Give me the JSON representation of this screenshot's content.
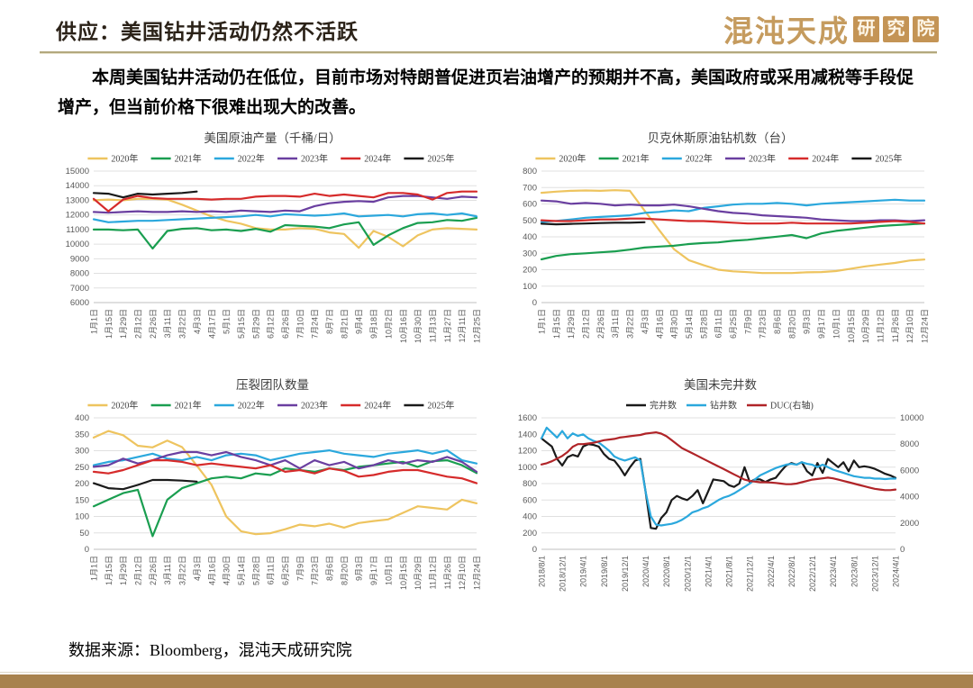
{
  "page": {
    "title": "供应：美国钻井活动仍然不活跃",
    "intro": "本周美国钻井活动仍在低位，目前市场对特朗普促进页岩油增产的预期并不高，美国政府或采用减税等手段促增产，但当前价格下很难出现大的改善。",
    "source": "数据来源：Bloomberg，混沌天成研究院"
  },
  "logo": {
    "brand": "混沌天成",
    "seal": [
      "研",
      "究",
      "院"
    ],
    "gold": "#c59b5e"
  },
  "colors": {
    "accent_bar": "#a8824e",
    "y2020": "#eec45f",
    "y2021": "#1a9e50",
    "y2022": "#2ba8dd",
    "y2023": "#6a3fa0",
    "y2024": "#d62b2b",
    "y2025": "#1a1a1a",
    "duc_red": "#b02428"
  },
  "chart_data": [
    {
      "type": "line",
      "title": "美国原油产量（千桶/日）",
      "legend_position": "top",
      "grid": true,
      "ylim": [
        6000,
        15000
      ],
      "ytick": 1000,
      "categories": [
        "1月1日",
        "1月15日",
        "1月29日",
        "2月12日",
        "2月26日",
        "3月11日",
        "3月22日",
        "4月3日",
        "4月17日",
        "5月1日",
        "5月15日",
        "5月29日",
        "6月12日",
        "6月26日",
        "7月10日",
        "7月24日",
        "8月7日",
        "8月21日",
        "9月4日",
        "9月18日",
        "10月2日",
        "10月16日",
        "10月30日",
        "11月13日",
        "11月27日",
        "12月11日",
        "12月25日"
      ],
      "series": [
        {
          "name": "2020年",
          "color": "#eec45f",
          "values": [
            13000,
            13050,
            13000,
            13100,
            13100,
            13050,
            12700,
            12300,
            11900,
            11600,
            11400,
            11100,
            11000,
            11000,
            11100,
            11050,
            10800,
            10700,
            9750,
            10900,
            10500,
            9850,
            10600,
            11000,
            11100,
            11050,
            11000
          ]
        },
        {
          "name": "2021年",
          "color": "#1a9e50",
          "values": [
            11000,
            11000,
            10950,
            11000,
            9700,
            10900,
            11050,
            11100,
            10950,
            11000,
            10900,
            11050,
            10850,
            11300,
            11250,
            11200,
            11100,
            11350,
            11500,
            9950,
            10600,
            11100,
            11450,
            11500,
            11650,
            11600,
            11800
          ]
        },
        {
          "name": "2022年",
          "color": "#2ba8dd",
          "values": [
            11700,
            11500,
            11550,
            11600,
            11600,
            11650,
            11700,
            11750,
            11800,
            11850,
            11900,
            12000,
            11900,
            12050,
            12000,
            11950,
            12000,
            12100,
            11900,
            11950,
            12000,
            11900,
            12050,
            12100,
            12000,
            12100,
            11900
          ]
        },
        {
          "name": "2023年",
          "color": "#6a3fa0",
          "values": [
            12200,
            12150,
            12200,
            12250,
            12200,
            12200,
            12250,
            12200,
            12250,
            12200,
            12300,
            12250,
            12200,
            12300,
            12250,
            12600,
            12800,
            12900,
            12950,
            12900,
            13200,
            13300,
            13300,
            13200,
            13100,
            13250,
            13200
          ]
        },
        {
          "name": "2024年",
          "color": "#d62b2b",
          "values": [
            13100,
            12250,
            13050,
            13300,
            13150,
            13100,
            13100,
            13100,
            13050,
            13100,
            13100,
            13250,
            13300,
            13300,
            13250,
            13450,
            13300,
            13400,
            13300,
            13200,
            13500,
            13500,
            13400,
            13050,
            13500,
            13600,
            13600
          ]
        },
        {
          "name": "2025年",
          "color": "#1a1a1a",
          "values": [
            13500,
            13450,
            13200,
            13450,
            13400,
            13450,
            13500,
            13600,
            null,
            null,
            null,
            null,
            null,
            null,
            null,
            null,
            null,
            null,
            null,
            null,
            null,
            null,
            null,
            null,
            null,
            null,
            null
          ]
        }
      ]
    },
    {
      "type": "line",
      "title": "贝克休斯原油钻机数（台）",
      "legend_position": "top",
      "grid": true,
      "ylim": [
        0,
        800
      ],
      "ytick": 100,
      "categories": [
        "1月1日",
        "1月15日",
        "1月29日",
        "2月12日",
        "2月26日",
        "3月11日",
        "3月22日",
        "4月3日",
        "4月16日",
        "4月30日",
        "5月14日",
        "5月28日",
        "6月11日",
        "6月25日",
        "7月9日",
        "7月23日",
        "8月6日",
        "8月20日",
        "9月3日",
        "9月17日",
        "10月1日",
        "10月15日",
        "10月29日",
        "11月12日",
        "11月26日",
        "12月10日",
        "12月24日"
      ],
      "series": [
        {
          "name": "2020年",
          "color": "#eec45f",
          "values": [
            668,
            675,
            680,
            682,
            680,
            684,
            680,
            560,
            440,
            325,
            258,
            228,
            200,
            190,
            185,
            180,
            180,
            180,
            184,
            186,
            192,
            206,
            220,
            231,
            241,
            256,
            262
          ]
        },
        {
          "name": "2021年",
          "color": "#1a9e50",
          "values": [
            263,
            284,
            295,
            300,
            306,
            312,
            322,
            335,
            341,
            346,
            356,
            362,
            366,
            376,
            382,
            392,
            401,
            411,
            392,
            421,
            436,
            446,
            456,
            466,
            471,
            476,
            481
          ]
        },
        {
          "name": "2022年",
          "color": "#2ba8dd",
          "values": [
            491,
            497,
            506,
            516,
            521,
            526,
            531,
            546,
            552,
            561,
            556,
            576,
            586,
            596,
            601,
            601,
            606,
            601,
            591,
            601,
            606,
            611,
            616,
            621,
            626,
            621,
            621
          ]
        },
        {
          "name": "2023年",
          "color": "#6a3fa0",
          "values": [
            621,
            616,
            601,
            606,
            601,
            591,
            596,
            591,
            591,
            596,
            586,
            571,
            556,
            546,
            541,
            531,
            526,
            521,
            516,
            506,
            501,
            496,
            496,
            501,
            501,
            496,
            501
          ]
        },
        {
          "name": "2024年",
          "color": "#d62b2b",
          "values": [
            501,
            496,
            496,
            501,
            506,
            506,
            511,
            511,
            506,
            501,
            496,
            496,
            491,
            486,
            481,
            481,
            481,
            486,
            481,
            481,
            481,
            481,
            486,
            491,
            496,
            491,
            481
          ]
        },
        {
          "name": "2025年",
          "color": "#1a1a1a",
          "values": [
            480,
            476,
            479,
            481,
            484,
            486,
            486,
            489,
            null,
            null,
            null,
            null,
            null,
            null,
            null,
            null,
            null,
            null,
            null,
            null,
            null,
            null,
            null,
            null,
            null,
            null,
            null
          ]
        }
      ]
    },
    {
      "type": "line",
      "title": "压裂团队数量",
      "legend_position": "top",
      "grid": true,
      "ylim": [
        0,
        400
      ],
      "ytick": 50,
      "categories": [
        "1月1日",
        "1月15日",
        "1月29日",
        "2月12日",
        "2月26日",
        "3月11日",
        "3月22日",
        "4月3日",
        "4月16日",
        "4月30日",
        "5月14日",
        "5月28日",
        "6月11日",
        "6月25日",
        "7月9日",
        "7月23日",
        "8月6日",
        "8月20日",
        "9月3日",
        "9月17日",
        "10月1日",
        "10月15日",
        "10月29日",
        "11月12日",
        "11月26日",
        "12月10日",
        "12月24日"
      ],
      "series": [
        {
          "name": "2020年",
          "color": "#eec45f",
          "values": [
            340,
            360,
            347,
            315,
            310,
            331,
            311,
            255,
            196,
            100,
            55,
            46,
            49,
            61,
            75,
            70,
            78,
            66,
            80,
            86,
            91,
            111,
            131,
            126,
            121,
            151,
            140
          ]
        },
        {
          "name": "2021年",
          "color": "#1a9e50",
          "values": [
            131,
            151,
            171,
            181,
            40,
            151,
            186,
            201,
            216,
            221,
            216,
            231,
            226,
            246,
            241,
            236,
            246,
            241,
            251,
            256,
            261,
            266,
            251,
            268,
            271,
            256,
            232
          ]
        },
        {
          "name": "2022年",
          "color": "#2ba8dd",
          "values": [
            256,
            266,
            271,
            281,
            291,
            276,
            271,
            281,
            271,
            286,
            291,
            286,
            271,
            281,
            291,
            296,
            301,
            291,
            286,
            281,
            291,
            296,
            301,
            291,
            301,
            271,
            261
          ]
        },
        {
          "name": "2023年",
          "color": "#6a3fa0",
          "values": [
            251,
            256,
            276,
            261,
            271,
            286,
            296,
            296,
            286,
            296,
            281,
            271,
            256,
            271,
            246,
            271,
            256,
            266,
            246,
            256,
            271,
            261,
            271,
            266,
            281,
            266,
            236
          ]
        },
        {
          "name": "2024年",
          "color": "#d62b2b",
          "values": [
            236,
            231,
            241,
            256,
            271,
            271,
            266,
            256,
            261,
            256,
            251,
            246,
            256,
            236,
            241,
            231,
            246,
            239,
            221,
            226,
            236,
            241,
            241,
            231,
            221,
            216,
            201
          ]
        },
        {
          "name": "2025年",
          "color": "#1a1a1a",
          "values": [
            201,
            186,
            183,
            196,
            211,
            211,
            209,
            206,
            null,
            null,
            null,
            null,
            null,
            null,
            null,
            null,
            null,
            null,
            null,
            null,
            null,
            null,
            null,
            null,
            null,
            null,
            null
          ]
        }
      ]
    },
    {
      "type": "line",
      "title": "美国未完井数",
      "legend_position": "top",
      "grid": true,
      "ylim": [
        0,
        1600
      ],
      "ytick": 200,
      "y2lim": [
        0,
        10000
      ],
      "y2tick": 2000,
      "categories": [
        "2018/8/1",
        "2018/12/1",
        "2019/4/1",
        "2019/8/1",
        "2019/12/1",
        "2020/4/1",
        "2020/8/1",
        "2020/12/1",
        "2021/4/1",
        "2021/8/1",
        "2021/12/1",
        "2022/4/1",
        "2022/8/1",
        "2022/12/1",
        "2023/4/1",
        "2023/8/1",
        "2023/12/1",
        "2024/4/1"
      ],
      "series": [
        {
          "name": "完井数",
          "color": "#1a1a1a",
          "axis": "left",
          "values": [
            1350,
            1300,
            1250,
            1100,
            1020,
            1120,
            1150,
            1130,
            1250,
            1280,
            1270,
            1250,
            1160,
            1100,
            1080,
            1000,
            900,
            1000,
            1080,
            1100,
            700,
            260,
            250,
            380,
            450,
            600,
            650,
            620,
            600,
            650,
            720,
            560,
            700,
            850,
            840,
            830,
            780,
            760,
            800,
            1000,
            820,
            850,
            850,
            820,
            850,
            870,
            950,
            1020,
            1050,
            1030,
            1060,
            950,
            900,
            1050,
            930,
            1100,
            1050,
            1000,
            1060,
            950,
            1080,
            1000,
            1010,
            1000,
            980,
            950,
            920,
            900,
            870
          ]
        },
        {
          "name": "钻井数",
          "color": "#2ba8dd",
          "axis": "left",
          "values": [
            1350,
            1480,
            1420,
            1360,
            1440,
            1350,
            1410,
            1380,
            1400,
            1350,
            1320,
            1300,
            1250,
            1200,
            1130,
            1100,
            1080,
            1100,
            1120,
            1080,
            700,
            400,
            300,
            290,
            300,
            310,
            330,
            360,
            400,
            450,
            470,
            500,
            520,
            560,
            600,
            630,
            650,
            680,
            720,
            760,
            800,
            850,
            900,
            930,
            960,
            990,
            1010,
            1030,
            1040,
            1030,
            1060,
            1040,
            1030,
            1000,
            1030,
            1000,
            970,
            950,
            930,
            910,
            890,
            880,
            870,
            870,
            860,
            860,
            855,
            860,
            860
          ]
        },
        {
          "name": "DUC(右轴)",
          "color": "#b02428",
          "axis": "right",
          "values": [
            6450,
            6550,
            6700,
            6900,
            7100,
            7400,
            7800,
            8000,
            8000,
            8050,
            8100,
            8200,
            8300,
            8350,
            8400,
            8500,
            8550,
            8600,
            8650,
            8700,
            8800,
            8850,
            8900,
            8800,
            8600,
            8300,
            8000,
            7700,
            7500,
            7300,
            7100,
            6900,
            6700,
            6500,
            6300,
            6100,
            5900,
            5700,
            5500,
            5300,
            5200,
            5150,
            5100,
            5100,
            5080,
            5050,
            5000,
            4950,
            4960,
            5000,
            5100,
            5200,
            5300,
            5350,
            5400,
            5450,
            5400,
            5300,
            5200,
            5100,
            5000,
            4900,
            4800,
            4700,
            4600,
            4550,
            4500,
            4500,
            4550
          ]
        }
      ]
    }
  ]
}
